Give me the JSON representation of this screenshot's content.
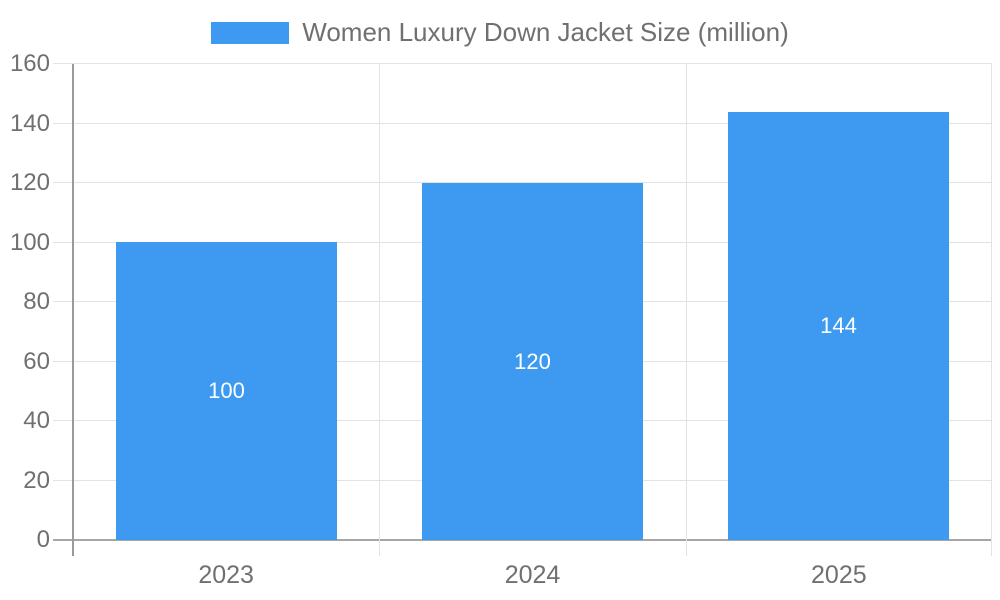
{
  "chart_data": {
    "type": "bar",
    "title": "Women Luxury Down Jacket Size (million)",
    "legend": {
      "position": "top",
      "entries": [
        {
          "label": "Women Luxury Down Jacket Size (million)",
          "color": "#3D9AF0"
        }
      ]
    },
    "categories": [
      "2023",
      "2024",
      "2025"
    ],
    "series": [
      {
        "name": "Women Luxury Down Jacket Size (million)",
        "values": [
          100,
          120,
          144
        ]
      }
    ],
    "values": [
      100,
      120,
      144
    ],
    "data_labels": [
      "100",
      "120",
      "144"
    ],
    "xlabel": "",
    "ylabel": "",
    "ylim": [
      0,
      160
    ],
    "yticks": [
      0,
      20,
      40,
      60,
      80,
      100,
      120,
      140,
      160
    ],
    "grid": true,
    "colors": {
      "bar": "#3D9AF0",
      "gridline": "#E3E3E3",
      "axis_line": "#9A9A9A",
      "baseline": "#A6A6A6",
      "axis_text": "#707070",
      "data_label_text": "#FFFFFF"
    }
  }
}
